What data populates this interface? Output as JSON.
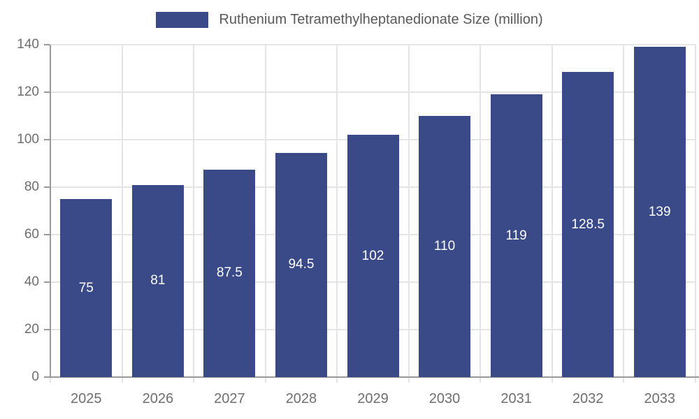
{
  "legend": {
    "label": "Ruthenium Tetramethylheptanedionate Size (million)"
  },
  "colors": {
    "background": "#ffffff",
    "bar": "#3A4A89",
    "grid": "#E4E4E4",
    "axis": "#999999",
    "tick_text": "#6E6E6E",
    "legend_text": "#595959",
    "bar_label": "#ffffff"
  },
  "chart_data": {
    "type": "bar",
    "title": "",
    "legend_entries": [
      "Ruthenium Tetramethylheptanedionate Size (million)"
    ],
    "legend_position": "top",
    "categories": [
      "2025",
      "2026",
      "2027",
      "2028",
      "2029",
      "2030",
      "2031",
      "2032",
      "2033"
    ],
    "values": [
      75,
      81,
      87.5,
      94.5,
      102,
      110,
      119,
      128.5,
      139
    ],
    "bar_value_labels": [
      "75",
      "81",
      "87.5",
      "94.5",
      "102",
      "110",
      "119",
      "128.5",
      "139"
    ],
    "xlabel": "",
    "ylabel": "",
    "ylim": [
      0,
      140
    ],
    "yticks": [
      0,
      20,
      40,
      60,
      80,
      100,
      120,
      140
    ],
    "grid": true,
    "vertical_gridlines": true
  }
}
